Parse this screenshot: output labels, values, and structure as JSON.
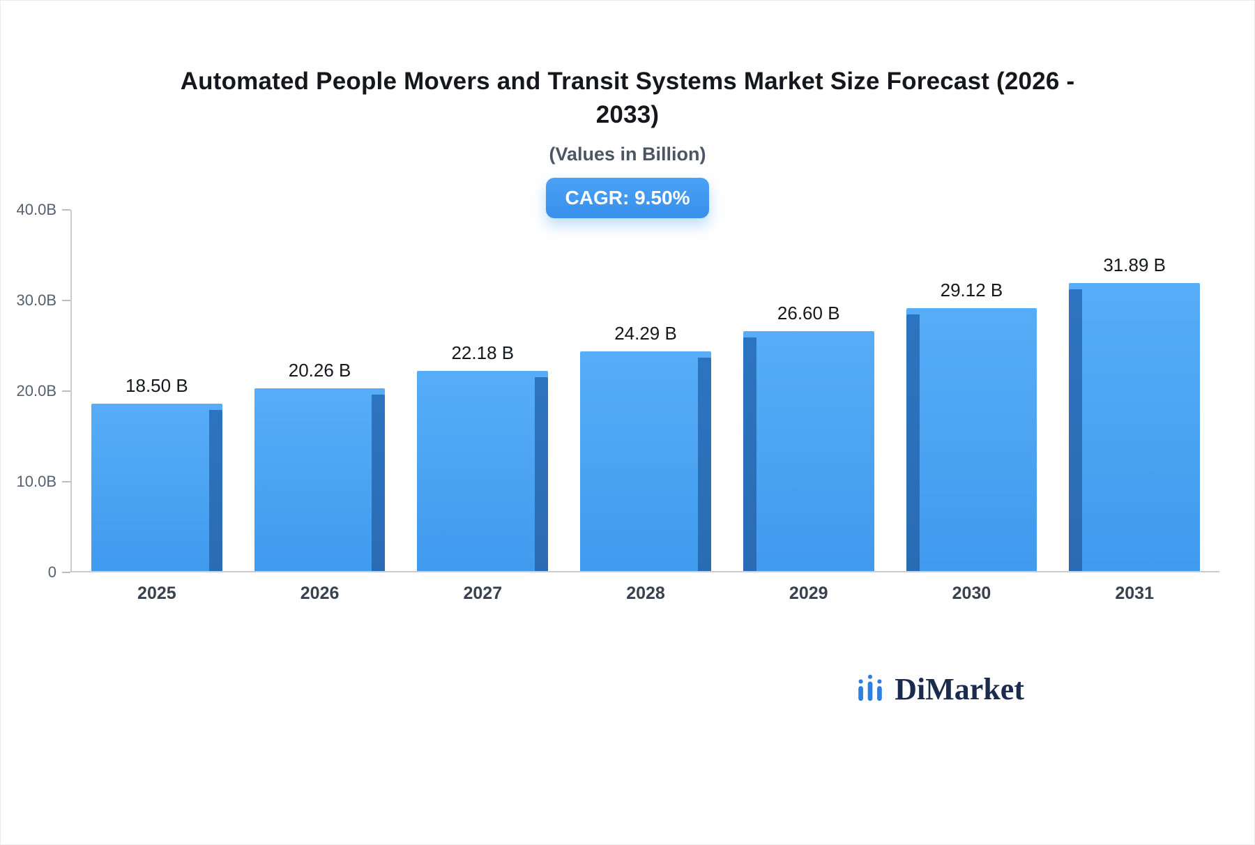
{
  "header": {
    "title": "Automated People Movers and Transit Systems Market Size Forecast (2026 - 2033)",
    "subtitle": "(Values in Billion)",
    "cagr_label": "CAGR: 9.50%"
  },
  "brand": {
    "name": "DiMarket"
  },
  "chart_data": {
    "type": "bar",
    "title": "Automated People Movers and Transit Systems Market Size Forecast (2026 - 2033)",
    "subtitle": "(Values in Billion)",
    "annotation": "CAGR: 9.50%",
    "categories": [
      "2025",
      "2026",
      "2027",
      "2028",
      "2029",
      "2030",
      "2031"
    ],
    "values": [
      18.5,
      20.26,
      22.18,
      24.29,
      26.6,
      29.12,
      31.89
    ],
    "value_labels": [
      "18.50 B",
      "20.26 B",
      "22.18 B",
      "24.29 B",
      "26.60 B",
      "29.12 B",
      "31.89 B"
    ],
    "xlabel": "",
    "ylabel": "",
    "ylim": [
      0,
      40
    ],
    "y_ticks": [
      {
        "label": "40.0B",
        "value": 40
      },
      {
        "label": "30.0B",
        "value": 30
      },
      {
        "label": "20.0B",
        "value": 20
      },
      {
        "label": "10.0B",
        "value": 10
      },
      {
        "label": "0",
        "value": 0
      }
    ],
    "grid": false,
    "legend": "none",
    "colors": {
      "bar_main": "#45a2f2",
      "bar_depth": "#2b6fb9",
      "axis": "#c9ccd2",
      "badge_bg": "#3f97ef",
      "brand_blue": "#2e7fe0",
      "brand_navy": "#1b2b4d"
    }
  }
}
